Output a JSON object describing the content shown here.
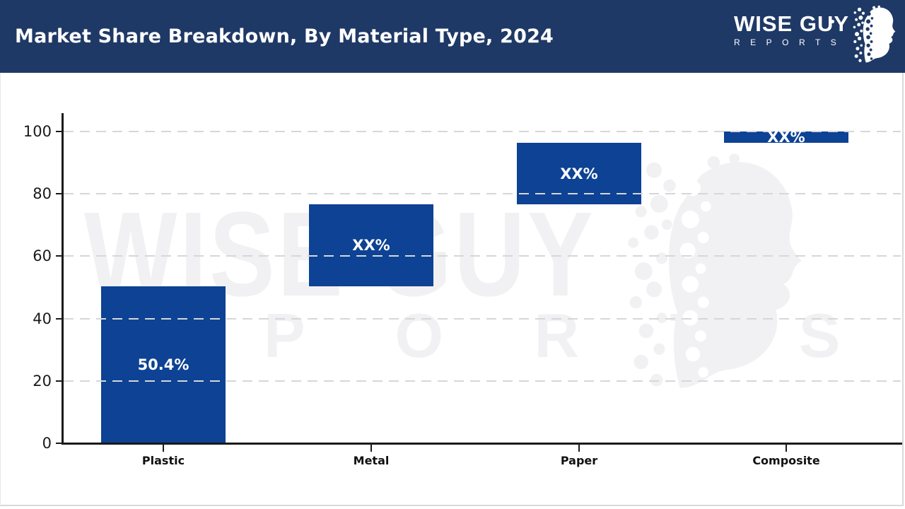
{
  "header": {
    "title": "Market Share Breakdown, By Material Type, 2024",
    "background_color": "#1f3966",
    "logo": {
      "line1": "WISE GUY",
      "line2": "REPORTS",
      "icon": "wiseguy-dotted-face-profile"
    }
  },
  "watermark": {
    "line1": "WISE GUY",
    "line2": "P O R T S",
    "icon": "wiseguy-dotted-face-profile",
    "color": "#f1f1f4"
  },
  "chart_data": {
    "type": "bar",
    "subtype": "waterfall",
    "title": "Market Share Breakdown, By Material Type, 2024",
    "categories": [
      "Plastic",
      "Metal",
      "Paper",
      "Composite"
    ],
    "segments": [
      {
        "category": "Plastic",
        "start": 0,
        "end": 50.4,
        "label": "50.4%"
      },
      {
        "category": "Metal",
        "start": 50.4,
        "end": 76.6,
        "label": "XX%"
      },
      {
        "category": "Paper",
        "start": 76.6,
        "end": 96.4,
        "label": "XX%"
      },
      {
        "category": "Composite",
        "start": 96.4,
        "end": 100,
        "label": "XX%"
      }
    ],
    "yticks": [
      0,
      20,
      40,
      60,
      80,
      100
    ],
    "ylim": [
      0,
      105
    ],
    "xlabel": "",
    "ylabel": "",
    "grid": true,
    "grid_style": "dashed",
    "grid_color": "#d7d7d7",
    "bar_color": "#0d4294",
    "value_label_color": "#ffffff",
    "axis_color": "#1a1a1a",
    "legend": "none"
  }
}
